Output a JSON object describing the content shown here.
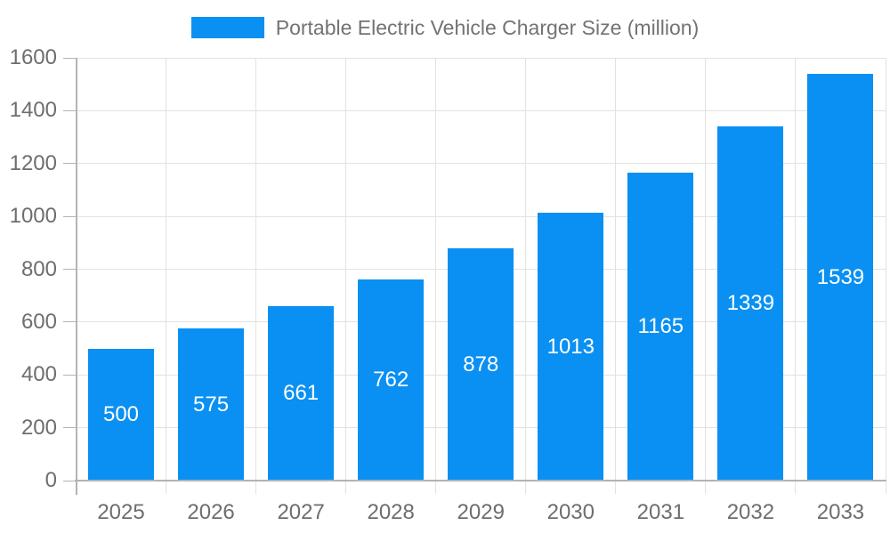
{
  "chart_data": {
    "type": "bar",
    "title": "Portable Electric Vehicle Charger Size (million)",
    "legend": "Portable Electric Vehicle Charger Size (million)",
    "legend_position": "top",
    "categories": [
      "2025",
      "2026",
      "2027",
      "2028",
      "2029",
      "2030",
      "2031",
      "2032",
      "2033"
    ],
    "values": [
      500,
      575,
      661,
      762,
      878,
      1013,
      1165,
      1339,
      1539
    ],
    "xlabel": "",
    "ylabel": "",
    "ylim": [
      0,
      1600
    ],
    "yticks": [
      0,
      200,
      400,
      600,
      800,
      1000,
      1200,
      1400,
      1600
    ],
    "grid": true,
    "colors": {
      "bar": "#0a90f2",
      "value_label": "#ffffff",
      "axis_text": "#6e6e6e",
      "legend_text": "#737373",
      "gridline": "#e2e2e2",
      "axis_line": "#b3b3b3",
      "background": "#ffffff"
    }
  }
}
